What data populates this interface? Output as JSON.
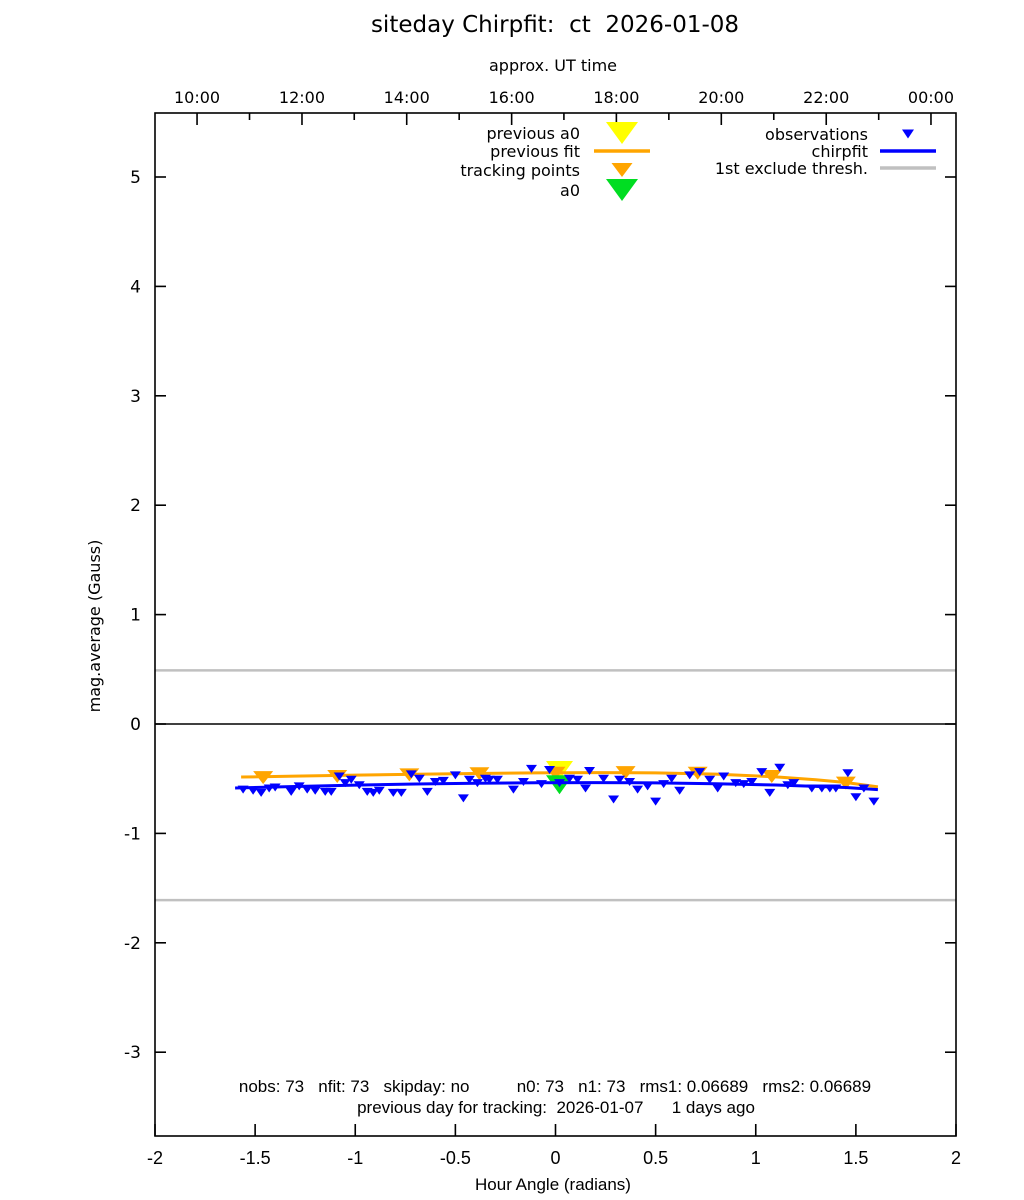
{
  "title": "siteday Chirpfit:  ct  2026-01-08",
  "stats": {
    "line1": "nobs: 73   nfit: 73   skipday: no          n0: 73   n1: 73   rms1: 0.06689   rms2: 0.06689",
    "line2": "previous day for tracking:  2026-01-07      1 days ago"
  },
  "colors": {
    "observations": "#0000ff",
    "chirpfit": "#0000ff",
    "previous_fit": "#ffa500",
    "tracking_points": "#ffa500",
    "previous_a0": "#ffff00",
    "a0": "#00dd22",
    "exclude_threshold": "#c0c0c0",
    "axis": "#000000"
  },
  "chart_data": {
    "type": "scatter",
    "title": "siteday Chirpfit:  ct  2026-01-08",
    "xlabel": "Hour Angle (radians)",
    "x2label": "approx. UT time",
    "ylabel": "mag.average (Gauss)",
    "xlim": [
      -2,
      2
    ],
    "ylim": [
      -3.766,
      5.585
    ],
    "grid": false,
    "legend_position": "top-inside",
    "x_ticks": [
      {
        "v": -2,
        "label": "-2"
      },
      {
        "v": -1.5,
        "label": "-1.5"
      },
      {
        "v": -1,
        "label": "-1"
      },
      {
        "v": -0.5,
        "label": "-0.5"
      },
      {
        "v": 0,
        "label": "0"
      },
      {
        "v": 0.5,
        "label": "0.5"
      },
      {
        "v": 1,
        "label": "1"
      },
      {
        "v": 1.5,
        "label": "1.5"
      },
      {
        "v": 2,
        "label": "2"
      }
    ],
    "x2_ticks": [
      {
        "v": -1.79,
        "label": "10:00"
      },
      {
        "v": -1.528
      },
      {
        "v": -1.266,
        "label": "12:00"
      },
      {
        "v": -1.005
      },
      {
        "v": -0.743,
        "label": "14:00"
      },
      {
        "v": -0.481
      },
      {
        "v": -0.219,
        "label": "16:00"
      },
      {
        "v": 0.042
      },
      {
        "v": 0.304,
        "label": "18:00"
      },
      {
        "v": 0.566
      },
      {
        "v": 0.828,
        "label": "20:00"
      },
      {
        "v": 1.09
      },
      {
        "v": 1.352,
        "label": "22:00"
      },
      {
        "v": 1.614
      },
      {
        "v": 1.875,
        "label": "00:00"
      }
    ],
    "y_ticks": [
      {
        "v": 5,
        "label": "5"
      },
      {
        "v": 4,
        "label": "4"
      },
      {
        "v": 3,
        "label": "3"
      },
      {
        "v": 2,
        "label": "2"
      },
      {
        "v": 1,
        "label": "1"
      },
      {
        "v": 0,
        "label": "0"
      },
      {
        "v": -1,
        "label": "-1"
      },
      {
        "v": -2,
        "label": "-2"
      },
      {
        "v": -3,
        "label": "-3"
      }
    ],
    "zero_line": {
      "value": 0,
      "color": "#000000"
    },
    "exclude_thresholds": {
      "values": [
        0.49,
        -1.61
      ],
      "color": "#c0c0c0"
    },
    "draw_order": [
      "previous_a0",
      "previous_fit",
      "tracking_points",
      "a0",
      "chirpfit",
      "observations"
    ],
    "series": {
      "previous_a0": {
        "kind": "markers",
        "marker": "triangle-large",
        "color": "#ffff00",
        "points": [
          [
            0.02,
            -0.425
          ]
        ]
      },
      "a0": {
        "kind": "markers",
        "marker": "triangle-large",
        "color": "#00dd22",
        "points": [
          [
            0.02,
            -0.555
          ]
        ]
      },
      "tracking_points": {
        "kind": "markers",
        "marker": "triangle-medium",
        "color": "#ffa500",
        "points": [
          [
            -1.46,
            -0.49
          ],
          [
            -1.09,
            -0.48
          ],
          [
            -0.73,
            -0.465
          ],
          [
            -0.38,
            -0.455
          ],
          [
            0.0,
            -0.45
          ],
          [
            0.35,
            -0.445
          ],
          [
            0.71,
            -0.45
          ],
          [
            1.08,
            -0.48
          ],
          [
            1.45,
            -0.54
          ]
        ]
      },
      "previous_fit": {
        "kind": "line",
        "color": "#ffa500",
        "width": 3,
        "points": [
          [
            -1.57,
            -0.485
          ],
          [
            -1.3,
            -0.477
          ],
          [
            -1.0,
            -0.467
          ],
          [
            -0.7,
            -0.459
          ],
          [
            -0.4,
            -0.452
          ],
          [
            -0.1,
            -0.447
          ],
          [
            0.2,
            -0.444
          ],
          [
            0.5,
            -0.447
          ],
          [
            0.8,
            -0.458
          ],
          [
            1.1,
            -0.483
          ],
          [
            1.3,
            -0.51
          ],
          [
            1.45,
            -0.535
          ],
          [
            1.61,
            -0.575
          ]
        ]
      },
      "chirpfit": {
        "kind": "line",
        "color": "#0000ff",
        "width": 3,
        "points": [
          [
            -1.6,
            -0.585
          ],
          [
            -1.3,
            -0.571
          ],
          [
            -1.0,
            -0.559
          ],
          [
            -0.7,
            -0.549
          ],
          [
            -0.4,
            -0.542
          ],
          [
            -0.1,
            -0.537
          ],
          [
            0.2,
            -0.536
          ],
          [
            0.5,
            -0.538
          ],
          [
            0.8,
            -0.546
          ],
          [
            1.1,
            -0.558
          ],
          [
            1.3,
            -0.57
          ],
          [
            1.45,
            -0.58
          ],
          [
            1.61,
            -0.6
          ]
        ]
      },
      "observations": {
        "kind": "markers",
        "marker": "triangle-small",
        "color": "#0000ff",
        "points": [
          [
            -1.56,
            -0.6
          ],
          [
            -1.51,
            -0.61
          ],
          [
            -1.47,
            -0.63
          ],
          [
            -1.43,
            -0.59
          ],
          [
            -1.4,
            -0.58
          ],
          [
            -1.32,
            -0.62
          ],
          [
            -1.28,
            -0.57
          ],
          [
            -1.24,
            -0.6
          ],
          [
            -1.2,
            -0.61
          ],
          [
            -1.15,
            -0.62
          ],
          [
            -1.12,
            -0.62
          ],
          [
            -1.08,
            -0.48
          ],
          [
            -1.05,
            -0.54
          ],
          [
            -1.02,
            -0.51
          ],
          [
            -0.98,
            -0.56
          ],
          [
            -0.94,
            -0.62
          ],
          [
            -0.91,
            -0.63
          ],
          [
            -0.88,
            -0.61
          ],
          [
            -0.81,
            -0.63
          ],
          [
            -0.77,
            -0.63
          ],
          [
            -0.72,
            -0.46
          ],
          [
            -0.68,
            -0.5
          ],
          [
            -0.64,
            -0.62
          ],
          [
            -0.6,
            -0.53
          ],
          [
            -0.56,
            -0.52
          ],
          [
            -0.5,
            -0.47
          ],
          [
            -0.46,
            -0.68
          ],
          [
            -0.43,
            -0.51
          ],
          [
            -0.39,
            -0.54
          ],
          [
            -0.35,
            -0.5
          ],
          [
            -0.33,
            -0.51
          ],
          [
            -0.29,
            -0.51
          ],
          [
            -0.21,
            -0.6
          ],
          [
            -0.16,
            -0.53
          ],
          [
            -0.12,
            -0.41
          ],
          [
            -0.07,
            -0.55
          ],
          [
            -0.03,
            -0.42
          ],
          [
            0.02,
            -0.54
          ],
          [
            0.07,
            -0.5
          ],
          [
            0.11,
            -0.51
          ],
          [
            0.15,
            -0.59
          ],
          [
            0.17,
            -0.43
          ],
          [
            0.24,
            -0.5
          ],
          [
            0.29,
            -0.69
          ],
          [
            0.32,
            -0.51
          ],
          [
            0.37,
            -0.53
          ],
          [
            0.41,
            -0.6
          ],
          [
            0.46,
            -0.57
          ],
          [
            0.5,
            -0.71
          ],
          [
            0.54,
            -0.55
          ],
          [
            0.58,
            -0.5
          ],
          [
            0.62,
            -0.61
          ],
          [
            0.67,
            -0.47
          ],
          [
            0.72,
            -0.44
          ],
          [
            0.77,
            -0.51
          ],
          [
            0.81,
            -0.59
          ],
          [
            0.84,
            -0.48
          ],
          [
            0.9,
            -0.54
          ],
          [
            0.94,
            -0.55
          ],
          [
            0.98,
            -0.53
          ],
          [
            1.03,
            -0.44
          ],
          [
            1.07,
            -0.63
          ],
          [
            1.12,
            -0.4
          ],
          [
            1.16,
            -0.56
          ],
          [
            1.19,
            -0.54
          ],
          [
            1.28,
            -0.59
          ],
          [
            1.33,
            -0.59
          ],
          [
            1.37,
            -0.59
          ],
          [
            1.4,
            -0.59
          ],
          [
            1.46,
            -0.45
          ],
          [
            1.5,
            -0.67
          ],
          [
            1.54,
            -0.59
          ],
          [
            1.59,
            -0.71
          ]
        ]
      }
    },
    "legend": {
      "left": [
        {
          "label": "previous a0",
          "swatch": "triangle-large",
          "color": "#ffff00"
        },
        {
          "label": "previous fit",
          "swatch": "line",
          "color": "#ffa500"
        },
        {
          "label": "tracking points",
          "swatch": "triangle-medium",
          "color": "#ffa500"
        },
        {
          "label": "a0",
          "swatch": "triangle-large",
          "color": "#00dd22"
        }
      ],
      "right": [
        {
          "label": "observations",
          "swatch": "triangle-small",
          "color": "#0000ff"
        },
        {
          "label": "chirpfit",
          "swatch": "line",
          "color": "#0000ff"
        },
        {
          "label": "1st exclude thresh.",
          "swatch": "line",
          "color": "#c0c0c0"
        }
      ]
    }
  }
}
